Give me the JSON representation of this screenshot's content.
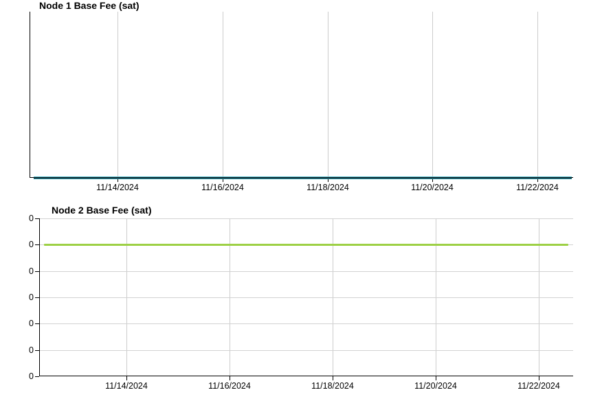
{
  "palette": {
    "background": "#ffffff",
    "axis_color": "#000000",
    "grid_color": "#cccccc",
    "title_color": "#000000",
    "node1_series_color": "#2d9fae",
    "node2_series_color": "#9dd045"
  },
  "chart_data": [
    {
      "type": "line",
      "title": "Node 1 Base Fee (sat)",
      "xlabel": "",
      "ylabel": "",
      "x_tick_labels": [
        "11/14/2024",
        "11/16/2024",
        "11/18/2024",
        "11/20/2024",
        "11/22/2024"
      ],
      "y_tick_labels": [],
      "grid": {
        "vertical": true,
        "horizontal": false
      },
      "legend_position": "none",
      "series": [
        {
          "name": "Node 1 Base Fee (sat)",
          "color": "#2d9fae",
          "constant_value": 0,
          "x_start": "11/12/2024",
          "x_end": "11/23/2024"
        }
      ]
    },
    {
      "type": "line",
      "title": "Node 2 Base Fee (sat)",
      "xlabel": "",
      "ylabel": "",
      "x_tick_labels": [
        "11/14/2024",
        "11/16/2024",
        "11/18/2024",
        "11/20/2024",
        "11/22/2024"
      ],
      "y_tick_labels": [
        "0",
        "0",
        "0",
        "0",
        "0",
        "0",
        "0"
      ],
      "grid": {
        "vertical": true,
        "horizontal": true
      },
      "legend_position": "none",
      "series": [
        {
          "name": "Node 2 Base Fee (sat)",
          "color": "#9dd045",
          "constant_value": 0,
          "x_start": "11/12/2024",
          "x_end": "11/23/2024"
        }
      ]
    }
  ]
}
